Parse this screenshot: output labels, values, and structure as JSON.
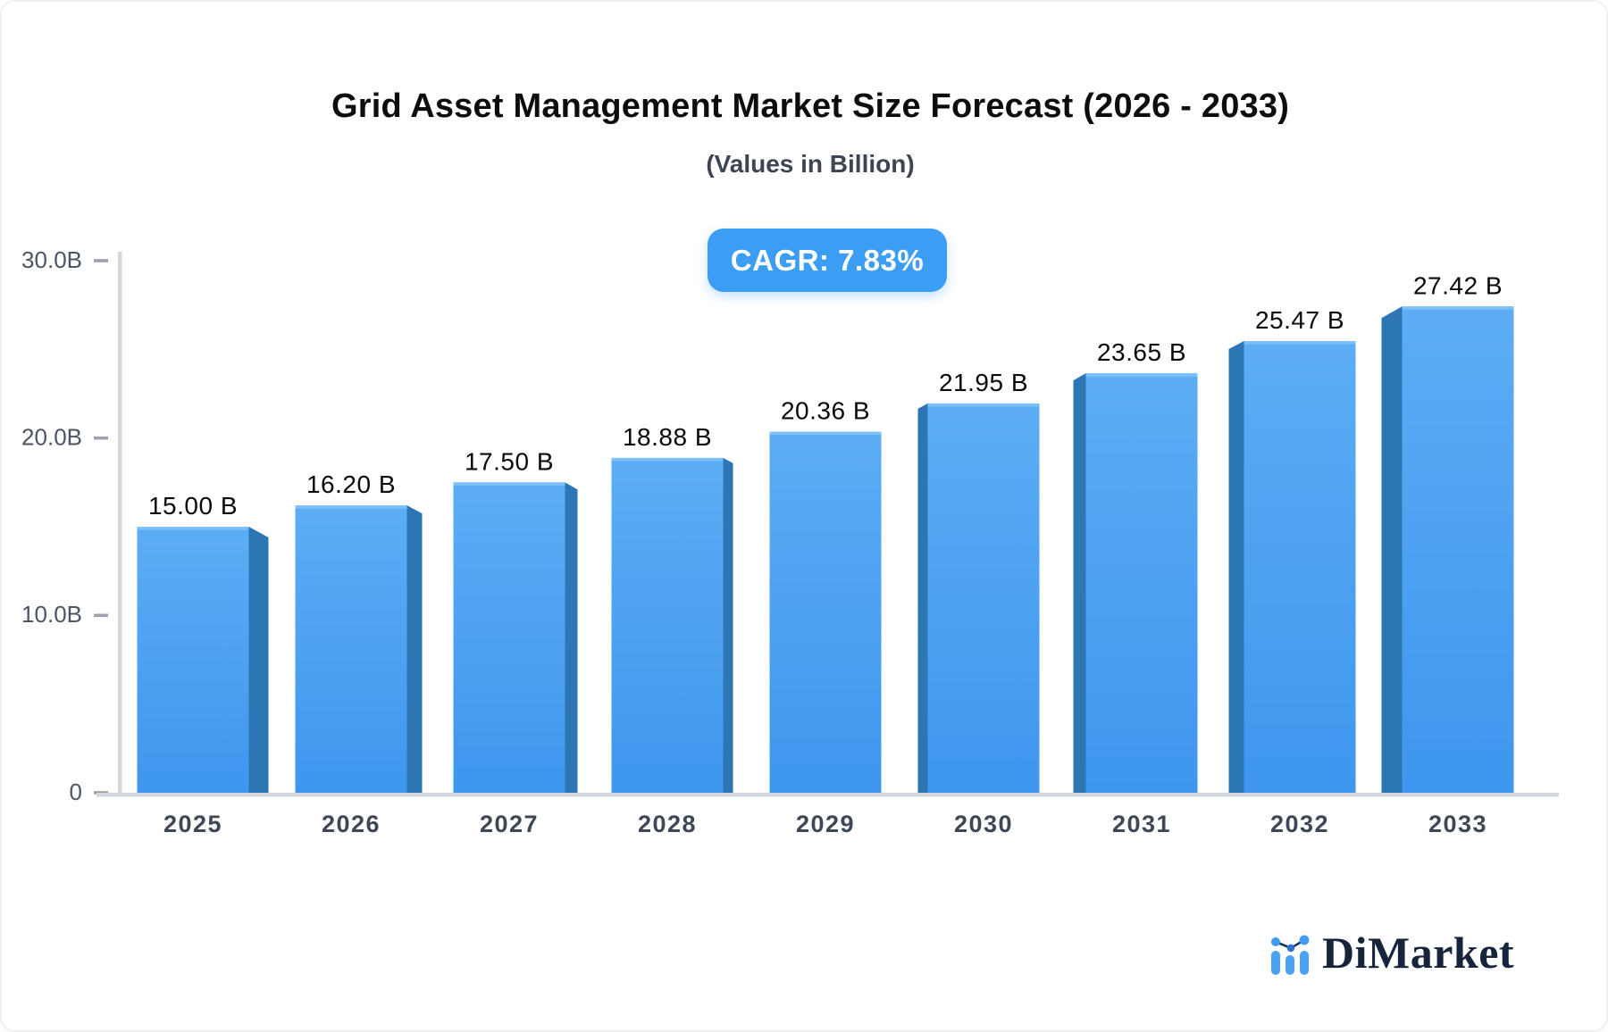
{
  "header": {
    "title": "Grid Asset Management Market Size Forecast (2026 - 2033)",
    "subtitle": "(Values in Billion)"
  },
  "badge": {
    "label": "CAGR: 7.83%",
    "bg_color": "#3b9df3",
    "text_color": "#ffffff"
  },
  "chart_data": {
    "type": "bar",
    "title": "Grid Asset Management Market Size Forecast (2026 - 2033)",
    "subtitle": "(Values in Billion)",
    "cagr": "7.83%",
    "categories": [
      "2025",
      "2026",
      "2027",
      "2028",
      "2029",
      "2030",
      "2031",
      "2032",
      "2033"
    ],
    "values": [
      15.0,
      16.2,
      17.5,
      18.88,
      20.36,
      21.95,
      23.65,
      25.47,
      27.42
    ],
    "value_labels": [
      "15.00 B",
      "16.20 B",
      "17.50 B",
      "18.88 B",
      "20.36 B",
      "21.95 B",
      "23.65 B",
      "25.47 B",
      "27.42 B"
    ],
    "y_axis": {
      "ylim": [
        0,
        30
      ],
      "tick_values": [
        30,
        20,
        10,
        0
      ],
      "tick_labels": [
        "30.0B",
        "20.0B",
        "10.0B",
        "0"
      ]
    },
    "grid": false,
    "legend": false,
    "style": {
      "bar_top": "#5cadf4",
      "bar_bottom": "#3e96ee",
      "bar_side": "#2d76b4",
      "bar_top_highlight": "#7ec0f7",
      "axis_line": "#d3d7dc",
      "tick_mark": "#9aa2ae",
      "tick_label_color": "#4b5563",
      "category_label_color": "#3d4756",
      "value_label_color": "#0a0a0a"
    }
  },
  "logo": {
    "text": "DiMarket",
    "icon": "bar-line-chart-icon",
    "text_color": "#16253c",
    "icon_bar_color": "#4aa2f5",
    "icon_line_color": "#1d3b63",
    "icon_mid_dot_color": "#2e6fd9"
  }
}
